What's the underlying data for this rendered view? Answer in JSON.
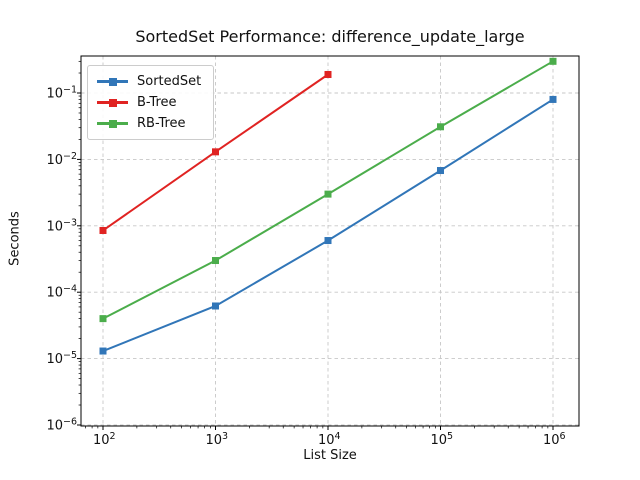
{
  "chart_data": {
    "type": "line",
    "title": "SortedSet Performance: difference_update_large",
    "xlabel": "List Size",
    "ylabel": "Seconds",
    "x_scale": "log",
    "y_scale": "log",
    "grid": true,
    "legend_position": "upper left",
    "xlim": [
      64,
      1700000
    ],
    "ylim": [
      1e-06,
      0.36
    ],
    "x_tick_exponents": [
      2,
      3,
      4,
      5,
      6
    ],
    "y_tick_exponents": [
      -1,
      -2,
      -3,
      -4,
      -5,
      -6
    ],
    "axis_color": "#000000",
    "grid_color": "#c7c7c7",
    "series": [
      {
        "name": "SortedSet",
        "color": "#3176b8",
        "marker": "square",
        "x": [
          100,
          1000,
          10000,
          100000,
          1000000
        ],
        "y": [
          1.3e-05,
          6.2e-05,
          0.0006,
          0.0068,
          0.08
        ]
      },
      {
        "name": "B-Tree",
        "color": "#e02322",
        "marker": "square",
        "x": [
          100,
          1000,
          10000
        ],
        "y": [
          0.00085,
          0.013,
          0.19
        ]
      },
      {
        "name": "RB-Tree",
        "color": "#4bad4b",
        "marker": "square",
        "x": [
          100,
          1000,
          10000,
          100000,
          1000000
        ],
        "y": [
          4e-05,
          0.0003,
          0.003,
          0.031,
          0.3
        ]
      }
    ]
  }
}
